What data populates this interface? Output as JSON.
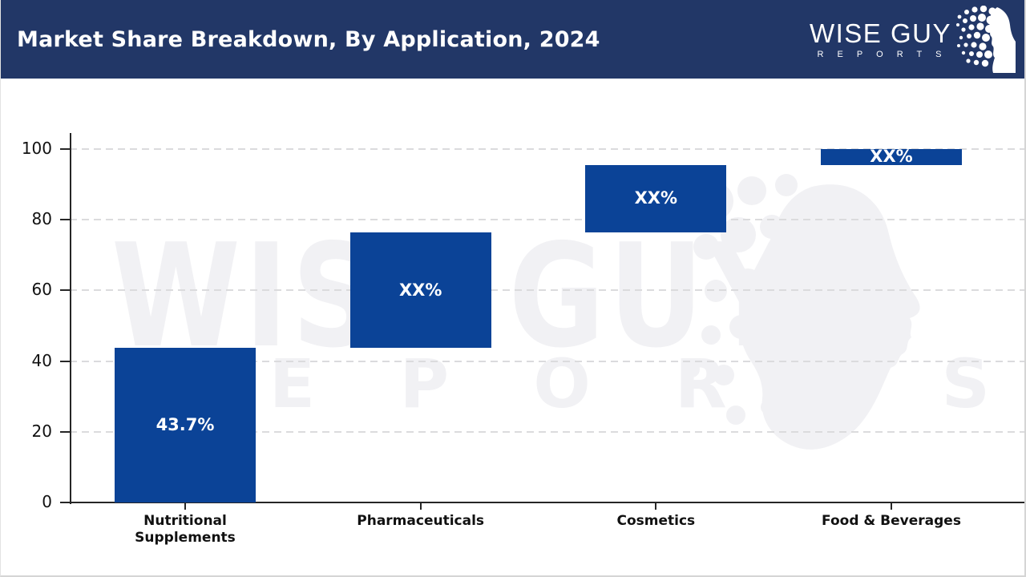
{
  "header": {
    "title": "Market Share Breakdown, By Application, 2024",
    "background_color": "#223767",
    "logo": {
      "brand": "WISE GUY",
      "tagline": "R E P O R T S",
      "icon": "dotted-face-profile"
    }
  },
  "watermark": {
    "line1": "WISE GUY",
    "line2": "R E P O R T S",
    "icon": "dotted-face-profile",
    "color": "#f1f1f4"
  },
  "chart_data": {
    "type": "bar",
    "subtype": "waterfall",
    "title": "Market Share Breakdown, By Application, 2024",
    "categories": [
      "Nutritional Supplements",
      "Pharmaceuticals",
      "Cosmetics",
      "Food & Beverages"
    ],
    "segments": [
      {
        "category": "Nutritional Supplements",
        "start": 0,
        "end": 43.7,
        "value": 43.7,
        "label": "43.7%"
      },
      {
        "category": "Pharmaceuticals",
        "start": 43.7,
        "end": 76.4,
        "value": 32.7,
        "label": "XX%"
      },
      {
        "category": "Cosmetics",
        "start": 76.4,
        "end": 95.5,
        "value": 19.1,
        "label": "XX%"
      },
      {
        "category": "Food & Beverages",
        "start": 95.5,
        "end": 100,
        "value": 4.5,
        "label": "XX%"
      }
    ],
    "y_ticks": [
      0,
      20,
      40,
      60,
      80,
      100
    ],
    "ylim": [
      0,
      100
    ],
    "xlabel": "",
    "ylabel": "",
    "grid": "horizontal-dashed",
    "legend": "none",
    "bar_color": "#0b4397",
    "bar_label_color": "#ffffff",
    "axis_color": "#262626"
  }
}
